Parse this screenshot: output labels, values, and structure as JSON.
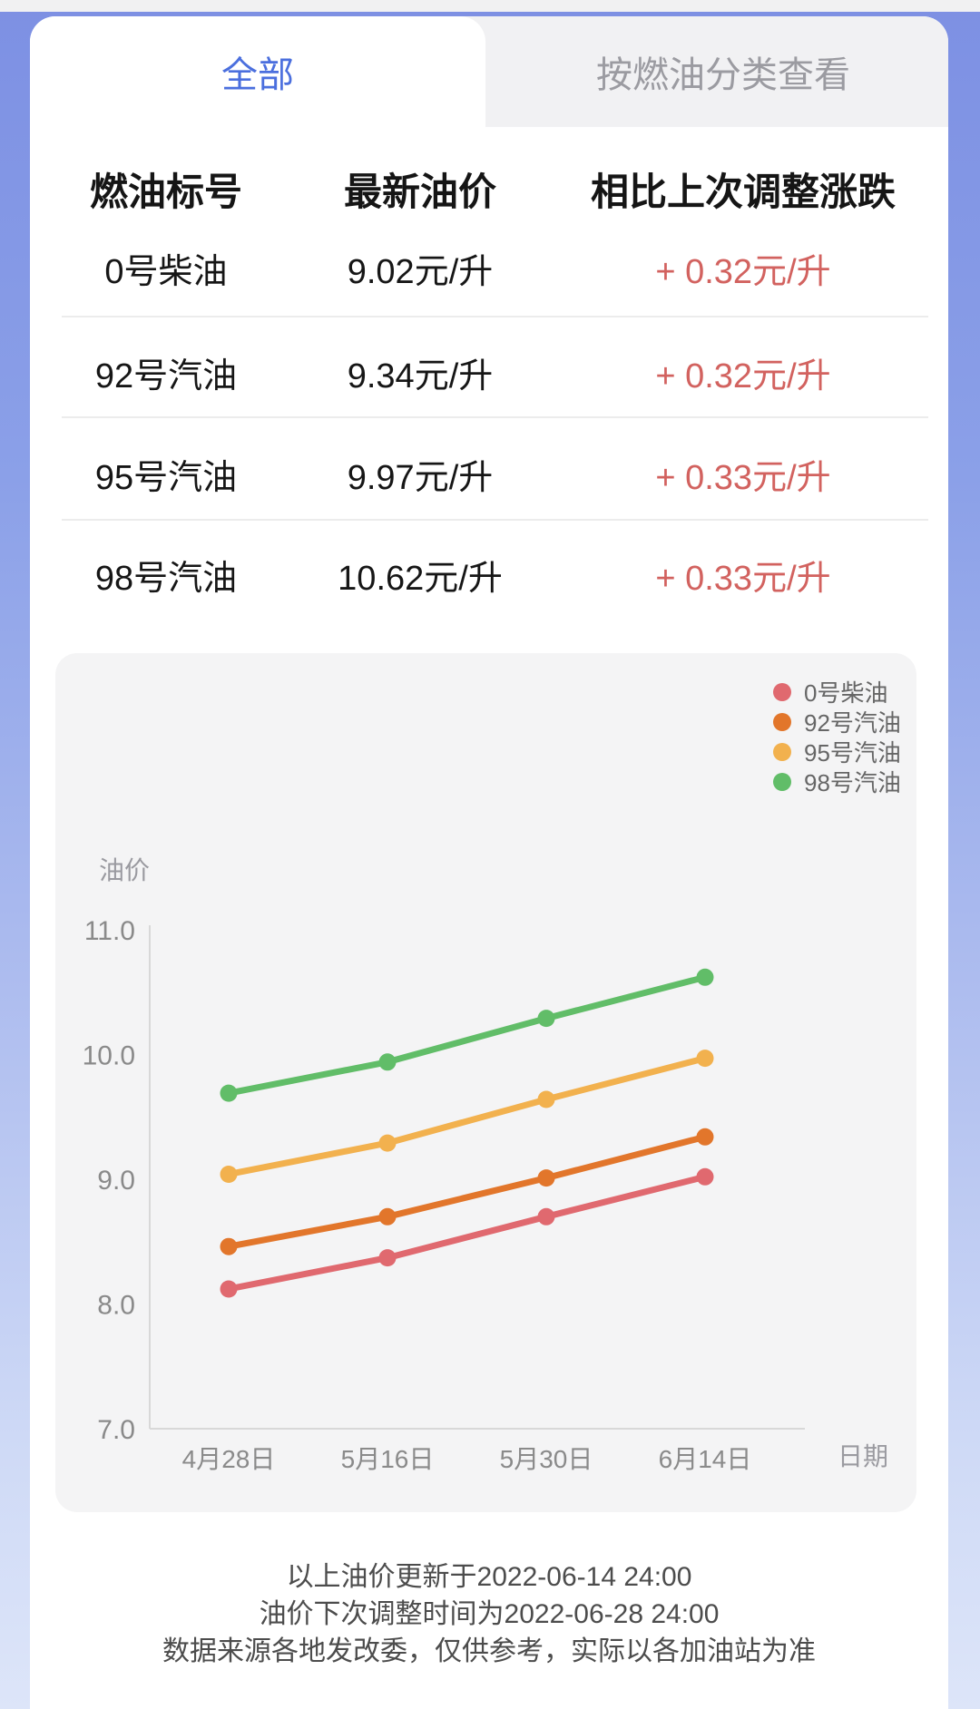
{
  "tabs": [
    {
      "label": "全部",
      "active": true
    },
    {
      "label": "按燃油分类查看",
      "active": false
    }
  ],
  "table": {
    "headers": [
      "燃油标号",
      "最新油价",
      "相比上次调整涨跌"
    ],
    "rows": [
      {
        "grade": "0号柴油",
        "price": "9.02元/升",
        "change": "+ 0.32元/升"
      },
      {
        "grade": "92号汽油",
        "price": "9.34元/升",
        "change": "+ 0.32元/升"
      },
      {
        "grade": "95号汽油",
        "price": "9.97元/升",
        "change": "+ 0.33元/升"
      },
      {
        "grade": "98号汽油",
        "price": "10.62元/升",
        "change": "+ 0.33元/升"
      }
    ],
    "change_color": "#d2625f"
  },
  "chart_data": {
    "type": "line",
    "title": "",
    "ylabel": "油价",
    "xlabel": "日期",
    "categories": [
      "4月28日",
      "5月16日",
      "5月30日",
      "6月14日"
    ],
    "series": [
      {
        "name": "0号柴油",
        "color": "#e0696f",
        "values": [
          8.12,
          8.37,
          8.7,
          9.02
        ]
      },
      {
        "name": "92号汽油",
        "color": "#e2762b",
        "values": [
          8.46,
          8.7,
          9.01,
          9.34
        ]
      },
      {
        "name": "95号汽油",
        "color": "#f2b14e",
        "values": [
          9.04,
          9.29,
          9.64,
          9.97
        ]
      },
      {
        "name": "98号汽油",
        "color": "#61bd68",
        "values": [
          9.69,
          9.94,
          10.29,
          10.62
        ]
      }
    ],
    "ylim": [
      7.0,
      11.0
    ],
    "yticks": [
      "11.0",
      "10.0",
      "9.0",
      "8.0",
      "7.0"
    ],
    "grid": false,
    "legend_position": "top-right"
  },
  "footer": {
    "lines": [
      "以上油价更新于2022-06-14 24:00",
      "油价下次调整时间为2022-06-28 24:00",
      "数据来源各地发改委，仅供参考，实际以各加油站为准"
    ]
  },
  "colors": {
    "accent_blue": "#4b6fde",
    "change_red": "#d2625f",
    "background_top": "#7d90e3",
    "background_bottom": "#dde5f9",
    "panel_gray": "#f4f4f5"
  }
}
